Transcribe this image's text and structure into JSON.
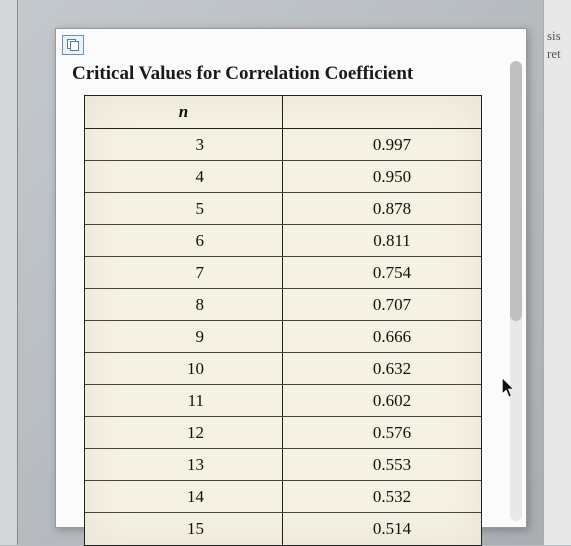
{
  "fragments": {
    "top": "",
    "right1": "sis",
    "right2": "ret"
  },
  "window": {
    "title": "Critical Values for Correlation Coefficient"
  },
  "table": {
    "type": "table",
    "background_color": "#f5f1e3",
    "border_color": "#222222",
    "header_fontsize": 17,
    "cell_fontsize": 17,
    "columns": [
      "n",
      ""
    ],
    "rows": [
      {
        "n": "3",
        "v": "0.997"
      },
      {
        "n": "4",
        "v": "0.950"
      },
      {
        "n": "5",
        "v": "0.878"
      },
      {
        "n": "6",
        "v": "0.811"
      },
      {
        "n": "7",
        "v": "0.754"
      },
      {
        "n": "8",
        "v": "0.707"
      },
      {
        "n": "9",
        "v": "0.666"
      },
      {
        "n": "10",
        "v": "0.632"
      },
      {
        "n": "11",
        "v": "0.602"
      },
      {
        "n": "12",
        "v": "0.576"
      },
      {
        "n": "13",
        "v": "0.553"
      },
      {
        "n": "14",
        "v": "0.532"
      },
      {
        "n": "15",
        "v": "0.514"
      }
    ]
  },
  "colors": {
    "page_bg": "#b8bcc0",
    "window_bg": "#fbfbfb",
    "scrollbar_track": "#e8e8e8",
    "scrollbar_thumb": "#bfbfbf"
  }
}
